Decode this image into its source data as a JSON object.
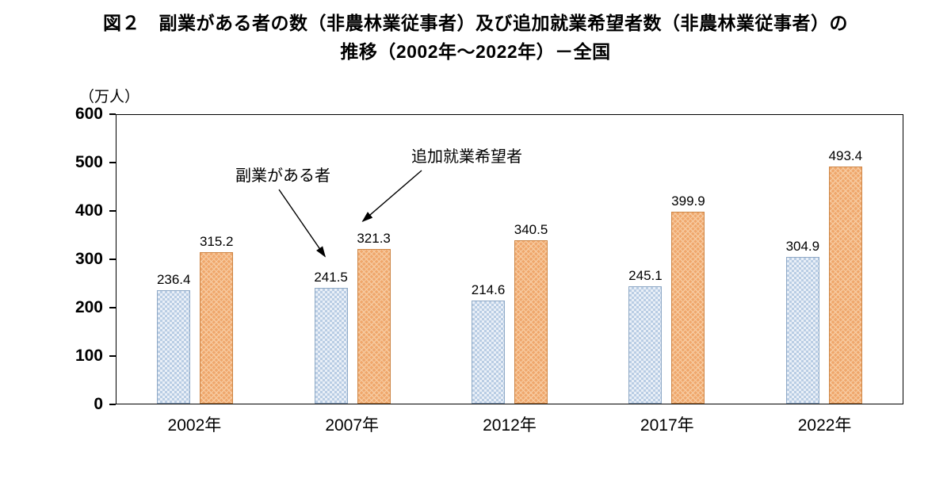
{
  "title": {
    "line1": "図２　副業がある者の数（非農林業従事者）及び追加就業希望者数（非農林業従事者）の",
    "line2": "推移（2002年～2022年）－全国"
  },
  "chart_data": {
    "type": "bar",
    "unit_label": "（万人）",
    "categories": [
      "2002年",
      "2007年",
      "2012年",
      "2017年",
      "2022年"
    ],
    "series": [
      {
        "name": "副業がある者",
        "values": [
          236.4,
          241.5,
          214.6,
          245.1,
          304.9
        ],
        "fill": "#e9eff7",
        "pattern": "checker",
        "pattern_color": "#b9cde4",
        "border": "#8fa9c6"
      },
      {
        "name": "追加就業希望者",
        "values": [
          315.2,
          321.3,
          340.5,
          399.9,
          493.4
        ],
        "fill": "#efa76c",
        "pattern": "diagonal-weave",
        "pattern_color": "#f7cba1",
        "border": "#cd8646"
      }
    ],
    "ylim": [
      0,
      600
    ],
    "yticks": [
      0,
      100,
      200,
      300,
      400,
      500,
      600
    ],
    "grid": false,
    "legend_position": "none",
    "annotations": [
      {
        "label": "副業がある者",
        "series": 0,
        "category": "2007年"
      },
      {
        "label": "追加就業希望者",
        "series": 1,
        "category": "2007年"
      }
    ]
  }
}
